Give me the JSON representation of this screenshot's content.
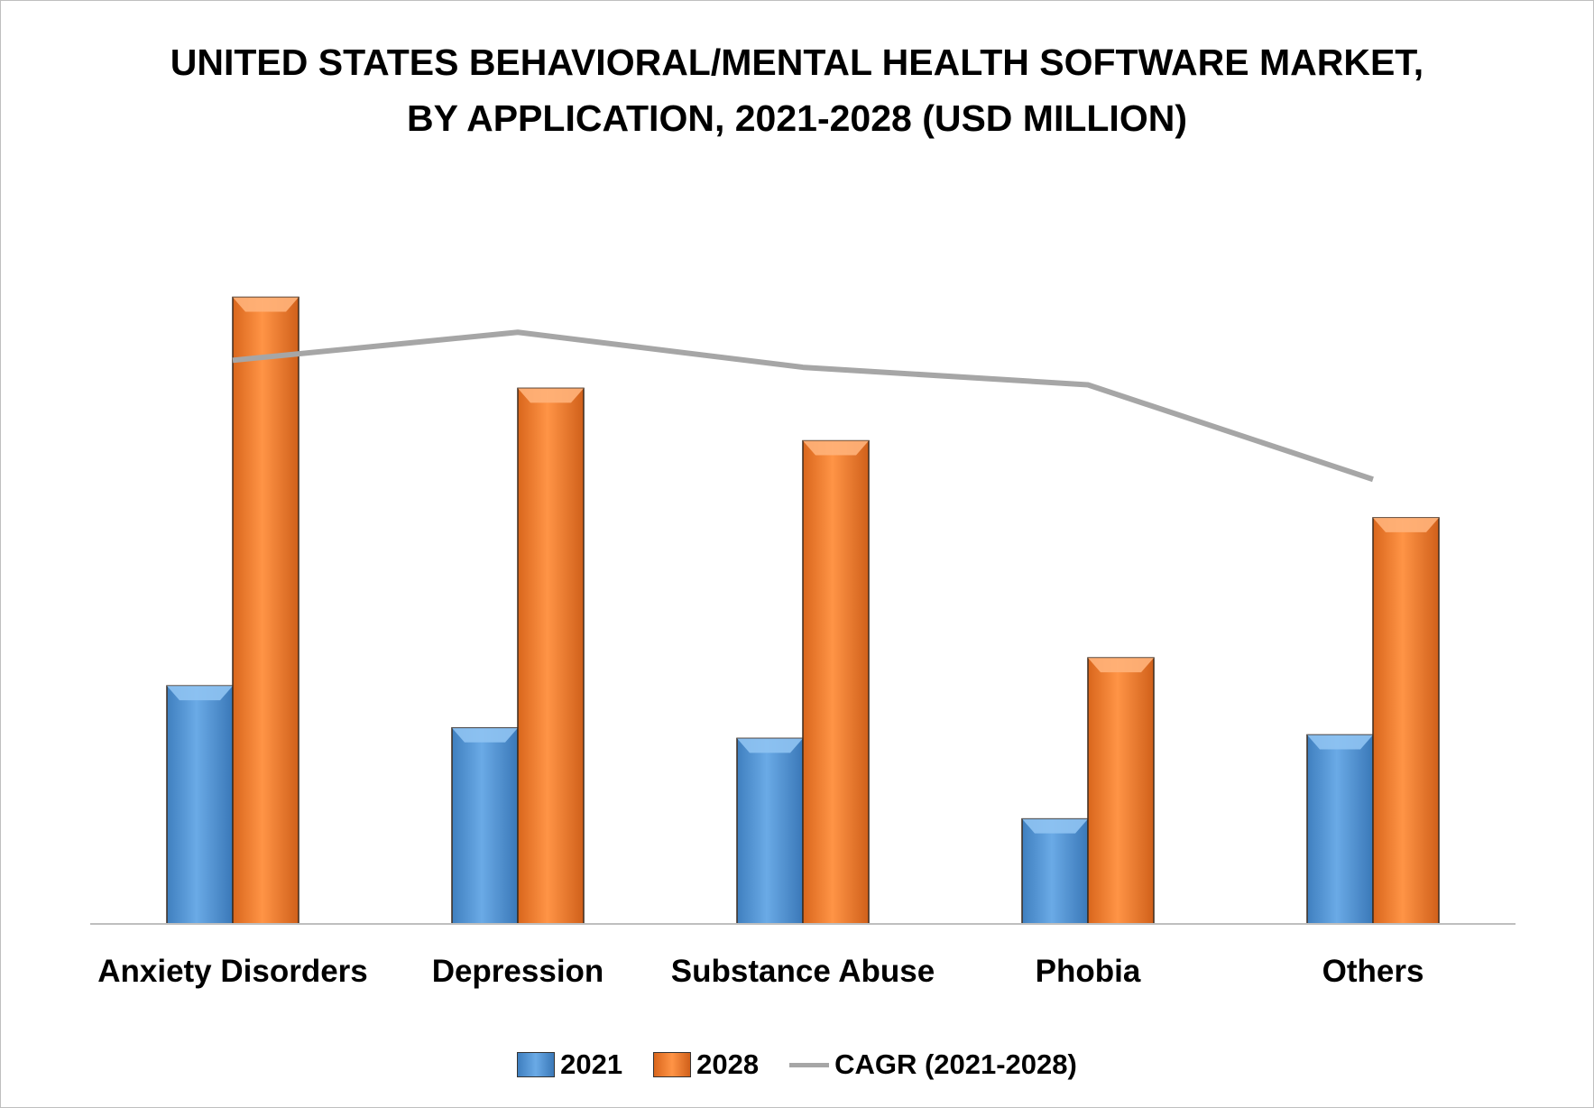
{
  "chart_data": {
    "type": "bar",
    "title_lines": [
      "UNITED STATES BEHAVIORAL/MENTAL HEALTH SOFTWARE MARKET,",
      "BY APPLICATION, 2021-2028 (USD MILLION)"
    ],
    "categories": [
      "Anxiety Disorders",
      "Depression",
      "Substance Abuse",
      "Phobia",
      "Others"
    ],
    "series": [
      {
        "name": "2021",
        "kind": "bar",
        "color": "#5b9bd5",
        "values": [
          34,
          28,
          26.5,
          15,
          27
        ]
      },
      {
        "name": "2028",
        "kind": "bar",
        "color": "#ed7d31",
        "values": [
          89.5,
          76.5,
          69,
          38,
          58
        ]
      },
      {
        "name": "CAGR (2021-2028)",
        "kind": "line",
        "color": "#a6a6a6",
        "values": [
          80.5,
          84.5,
          79.5,
          77,
          63.5
        ]
      }
    ],
    "ylim": [
      0,
      100
    ],
    "grid": false,
    "legend_position": "bottom"
  }
}
